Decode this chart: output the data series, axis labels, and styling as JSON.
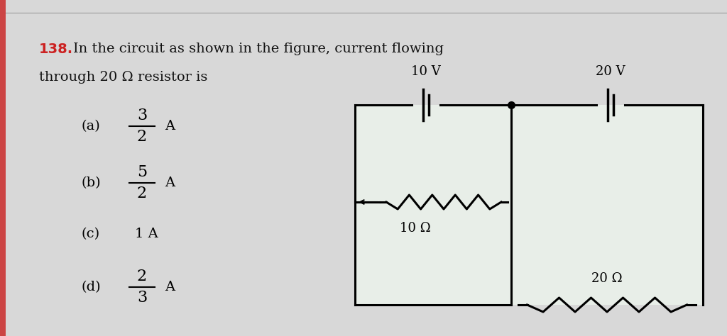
{
  "background_color": "#d8d8d8",
  "question_number": "138.",
  "question_number_color": "#cc2222",
  "question_text_line1": "In the circuit as shown in the figure, current flowing",
  "question_text_line2": "through 20 Ω resistor is",
  "options": [
    {
      "label": "(a)",
      "numerator": "3",
      "denominator": "2",
      "unit": "A"
    },
    {
      "label": "(b)",
      "numerator": "5",
      "denominator": "2",
      "unit": "A"
    },
    {
      "label": "(c)",
      "text": "1 A"
    },
    {
      "label": "(d)",
      "numerator": "2",
      "denominator": "3",
      "unit": "A"
    }
  ],
  "circuit": {
    "battery1_label": "10 V",
    "battery2_label": "20 V",
    "resistor1_label": "10 Ω",
    "resistor2_label": "20 Ω",
    "bg_color": "#e8eee8"
  },
  "left_edge_bar_color": "#cc4444"
}
